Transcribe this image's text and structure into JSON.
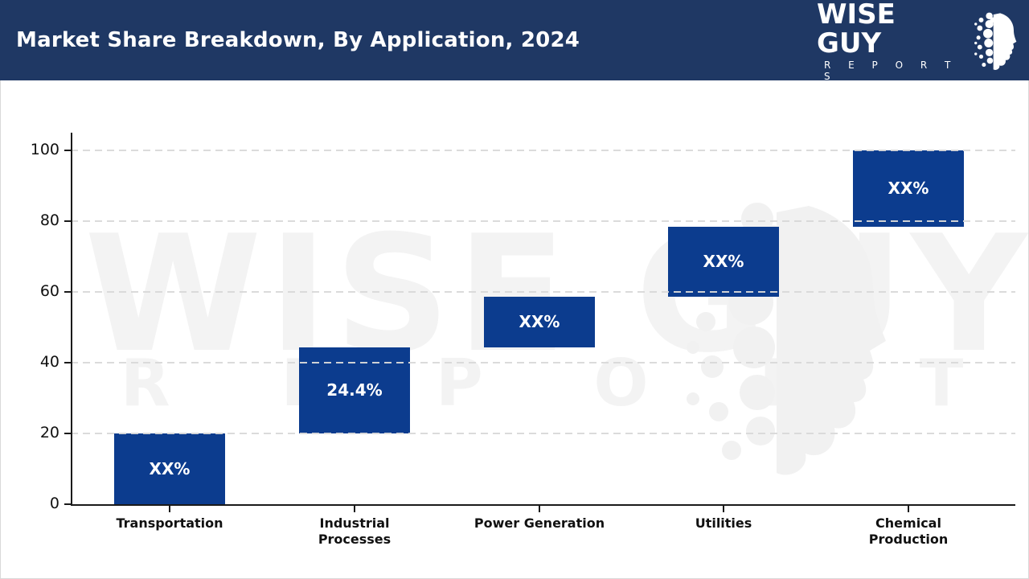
{
  "header": {
    "title": "Market Share Breakdown, By Application, 2024",
    "logo": {
      "line1": "WISE GUY",
      "line2": "R E P O R T S"
    }
  },
  "watermark": {
    "line1": "WISE GUY",
    "line2": "R E P O R T S"
  },
  "chart_data": {
    "type": "bar",
    "subtype": "waterfall",
    "title": "Market Share Breakdown, By Application, 2024",
    "categories": [
      "Transportation",
      "Industrial\nProcesses",
      "Power Generation",
      "Utilities",
      "Chemical\nProduction"
    ],
    "segments": [
      {
        "category": "Transportation",
        "start": 0,
        "end": 20,
        "label": "XX%"
      },
      {
        "category": "Industrial Processes",
        "start": 20,
        "end": 44.4,
        "label": "24.4%"
      },
      {
        "category": "Power Generation",
        "start": 44.4,
        "end": 58.6,
        "label": "XX%"
      },
      {
        "category": "Utilities",
        "start": 58.6,
        "end": 78.5,
        "label": "XX%"
      },
      {
        "category": "Chemical Production",
        "start": 78.5,
        "end": 100,
        "label": "XX%"
      }
    ],
    "y_ticks": [
      0,
      20,
      40,
      60,
      80,
      100
    ],
    "ylim": [
      0,
      105
    ],
    "xlabel": "",
    "ylabel": "",
    "grid": "dashed-horizontal",
    "legend": "none",
    "colors": {
      "bar": "#0c3c8e",
      "header_band": "#1f3864",
      "grid": "#d9d9d9",
      "axis": "#1a1a1a",
      "watermark": "#f3f3f3",
      "bar_label_text": "#ffffff"
    }
  }
}
